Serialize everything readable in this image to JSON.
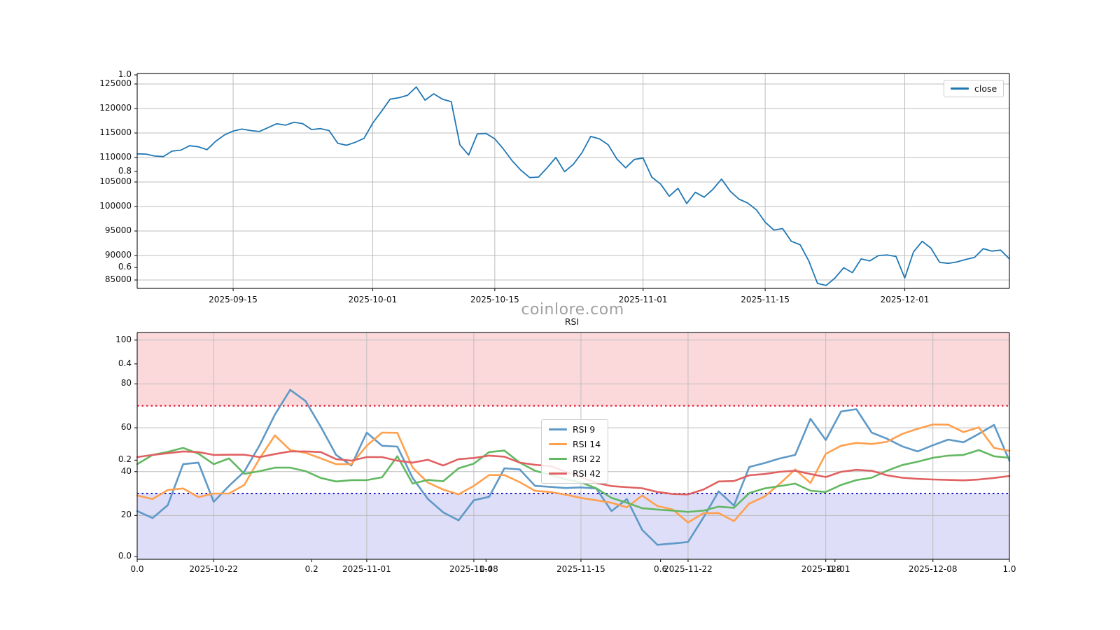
{
  "watermark": "coinlore.com",
  "colors": {
    "close_line": "#1f77b4",
    "rsi9": "#5f99c7",
    "rsi14": "#ffa04e",
    "rsi22": "#62b862",
    "rsi42": "#e06162",
    "overbought_line": "#e8112d",
    "oversold_line": "#1616c8",
    "overbought_band": "#fbd9db",
    "oversold_band": "#dedef8",
    "gridline": "#bdbdbd",
    "spine": "#262626",
    "watermark_color": "#a0a0a0"
  },
  "outer_axis": {
    "y_ticks": [
      {
        "label": "1.0",
        "f": 1.0
      },
      {
        "label": "0.8",
        "f": 0.8
      },
      {
        "label": "0.6",
        "f": 0.6
      },
      {
        "label": "0.4",
        "f": 0.4
      },
      {
        "label": "0.2",
        "f": 0.2
      },
      {
        "label": "0.0",
        "f": 0.0
      }
    ],
    "x_ticks": [
      {
        "label": "0.0",
        "f": 0.0
      },
      {
        "label": "0.2",
        "f": 0.2
      },
      {
        "label": "0.4",
        "f": 0.4
      },
      {
        "label": "0.6",
        "f": 0.6
      },
      {
        "label": "0.8",
        "f": 0.8
      },
      {
        "label": "1.0",
        "f": 1.0
      }
    ]
  },
  "chart_data": [
    {
      "type": "line",
      "title": "",
      "xlabel": "",
      "ylabel": "",
      "x_start_date": "2025-09-04",
      "x_end_date": "2025-12-13",
      "ylim": [
        83290,
        127140
      ],
      "grid": true,
      "legend_position": "upper right",
      "y_ticks": [
        {
          "label": "85000",
          "value": 85000
        },
        {
          "label": "90000",
          "value": 90000
        },
        {
          "label": "95000",
          "value": 95000
        },
        {
          "label": "100000",
          "value": 100000
        },
        {
          "label": "105000",
          "value": 105000
        },
        {
          "label": "110000",
          "value": 110000
        },
        {
          "label": "115000",
          "value": 115000
        },
        {
          "label": "120000",
          "value": 120000
        },
        {
          "label": "125000",
          "value": 125000
        }
      ],
      "x_ticks": [
        {
          "label": "2025-09-15",
          "day": 11
        },
        {
          "label": "2025-10-01",
          "day": 27
        },
        {
          "label": "2025-10-15",
          "day": 41
        },
        {
          "label": "2025-11-01",
          "day": 58
        },
        {
          "label": "2025-11-15",
          "day": 72
        },
        {
          "label": "2025-12-01",
          "day": 88
        }
      ],
      "series": [
        {
          "name": "close",
          "color": "#1f77b4",
          "width": 1.8,
          "values": [
            110750,
            110700,
            110300,
            110200,
            111300,
            111500,
            112400,
            112200,
            111600,
            113300,
            114600,
            115400,
            115800,
            115500,
            115300,
            116100,
            116900,
            116600,
            117200,
            116900,
            115700,
            115900,
            115500,
            112900,
            112500,
            113100,
            113900,
            117000,
            119400,
            121900,
            122200,
            122700,
            124400,
            121700,
            123000,
            121900,
            121400,
            112600,
            110500,
            114800,
            114900,
            113800,
            111700,
            109300,
            107400,
            105900,
            106000,
            107900,
            110000,
            107100,
            108600,
            111000,
            114300,
            113800,
            112600,
            109700,
            107900,
            109600,
            109900,
            106000,
            104600,
            102100,
            103700,
            100600,
            102900,
            101900,
            103500,
            105600,
            103100,
            101500,
            100700,
            99300,
            96800,
            95200,
            95500,
            92900,
            92200,
            88900,
            84300,
            83900,
            85400,
            87500,
            86500,
            89300,
            88900,
            90000,
            90100,
            89800,
            85400,
            90700,
            92900,
            91500,
            88600,
            88400,
            88700,
            89200,
            89600,
            91400,
            90900,
            91100,
            89300
          ]
        }
      ]
    },
    {
      "type": "line",
      "title": "RSI",
      "xlabel": "",
      "ylabel": "",
      "x_start_date": "2025-10-17",
      "x_end_date": "2025-12-13",
      "ylim": [
        0,
        103.5
      ],
      "grid": true,
      "legend_position": "center left",
      "overbought_level": 70,
      "oversold_level": 30,
      "y_ticks": [
        {
          "label": "20",
          "value": 20
        },
        {
          "label": "40",
          "value": 40
        },
        {
          "label": "60",
          "value": 60
        },
        {
          "label": "80",
          "value": 80
        },
        {
          "label": "100",
          "value": 100
        }
      ],
      "x_ticks": [
        {
          "label": "2025-10-22",
          "day": 5
        },
        {
          "label": "2025-11-01",
          "day": 15
        },
        {
          "label": "2025-11-08",
          "day": 22
        },
        {
          "label": "2025-11-15",
          "day": 29
        },
        {
          "label": "2025-11-22",
          "day": 36
        },
        {
          "label": "2025-12-01",
          "day": 45
        },
        {
          "label": "2025-12-08",
          "day": 52
        }
      ],
      "series": [
        {
          "name": "RSI 9",
          "color": "#5f99c7",
          "width": 2.6,
          "values": [
            22,
            18.8,
            24.7,
            43.4,
            44.1,
            26.2,
            33.5,
            40,
            52,
            66,
            77.3,
            72.2,
            60.4,
            47.6,
            42.8,
            57.8,
            51.8,
            51.4,
            37.1,
            27.5,
            21.4,
            17.8,
            26.9,
            28.5,
            41.5,
            41,
            33.5,
            33,
            32.5,
            32.8,
            32.3,
            22,
            27.5,
            13.4,
            6.6,
            7.2,
            7.9,
            19,
            31,
            24.5,
            42.1,
            43.9,
            46,
            47.6,
            64.1,
            54.4,
            67.4,
            68.5,
            57.8,
            55,
            51.5,
            49.2,
            52,
            54.6,
            53.4,
            57.2,
            61.3,
            45
          ]
        },
        {
          "name": "RSI 14",
          "color": "#ffa04e",
          "width": 2.6,
          "values": [
            29.1,
            27.5,
            31.6,
            32.3,
            28.4,
            30,
            30,
            33.9,
            46,
            56.5,
            49.8,
            48.6,
            46,
            43.4,
            43.4,
            51.8,
            57.8,
            57.7,
            41.8,
            35,
            31.8,
            29.6,
            33.5,
            38.4,
            38.4,
            35.2,
            31.2,
            30.7,
            29.5,
            28,
            26.9,
            25.8,
            23.7,
            29.1,
            24.3,
            22.7,
            16.8,
            21,
            21.1,
            17.4,
            25.4,
            28.6,
            34.5,
            41,
            34.8,
            48.1,
            51.8,
            53.1,
            52.6,
            53.6,
            57.2,
            59.5,
            61.5,
            61.4,
            58,
            60.2,
            50.8,
            49.5
          ]
        },
        {
          "name": "RSI 22",
          "color": "#62b862",
          "width": 2.6,
          "values": [
            43.4,
            47.6,
            49,
            50.8,
            48.2,
            43.4,
            46,
            39,
            40.2,
            41.8,
            41.8,
            40.2,
            37.1,
            35.5,
            36.1,
            36.1,
            37.4,
            47,
            34.5,
            36.2,
            35.6,
            41.5,
            43.6,
            48.9,
            49.6,
            44.1,
            40.4,
            38.5,
            36.5,
            35.1,
            32.4,
            28,
            25.8,
            23.3,
            22.7,
            22.2,
            21.6,
            22.2,
            24,
            23.5,
            30.2,
            32.3,
            33.4,
            34.5,
            31.3,
            30.7,
            33.9,
            36.1,
            37.2,
            40.4,
            43,
            44.5,
            46.3,
            47.3,
            47.6,
            49.8,
            47,
            46.3
          ]
        },
        {
          "name": "RSI 42",
          "color": "#e06162",
          "width": 2.6,
          "values": [
            46.6,
            47.6,
            48.4,
            49.2,
            48.9,
            47.6,
            47.7,
            47.7,
            46.6,
            48,
            49.2,
            49.2,
            48.9,
            45.7,
            45,
            46.6,
            46.6,
            45,
            44.1,
            45.4,
            42.8,
            45.7,
            46.2,
            47.3,
            46.8,
            44.1,
            43.1,
            42.5,
            40,
            37.5,
            34.8,
            33.4,
            32.9,
            32.4,
            30.7,
            29.8,
            29.6,
            31.8,
            35.5,
            35.7,
            38.3,
            38.9,
            39.9,
            40.4,
            38.9,
            37.5,
            39.9,
            40.8,
            40.4,
            38.3,
            37.2,
            36.7,
            36.4,
            36.2,
            36,
            36.4,
            37.1,
            38
          ]
        }
      ]
    }
  ]
}
